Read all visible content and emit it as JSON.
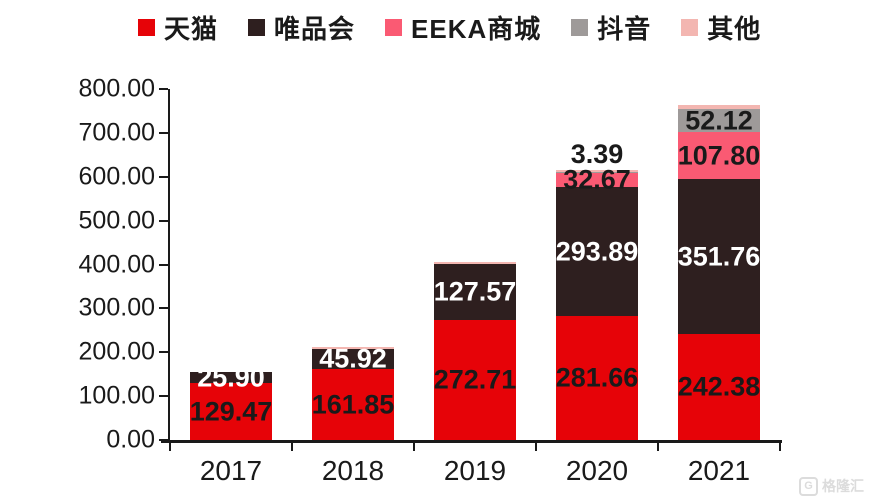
{
  "chart_data": {
    "type": "stacked-bar",
    "title": "",
    "categories": [
      "2017",
      "2018",
      "2019",
      "2020",
      "2021"
    ],
    "series": [
      {
        "name": "天猫",
        "color": "#e60308",
        "label_color": "#1a1a1a",
        "values": [
          129.47,
          161.85,
          272.71,
          281.66,
          242.38
        ],
        "labels": [
          "129.47",
          "161.85",
          "272.71",
          "281.66",
          "242.38"
        ]
      },
      {
        "name": "唯品会",
        "color": "#2e1f1f",
        "label_color": "#ffffff",
        "values": [
          25.9,
          45.92,
          127.57,
          293.89,
          351.76
        ],
        "labels": [
          "25.90",
          "45.92",
          "127.57",
          "293.89",
          "351.76"
        ]
      },
      {
        "name": "EEKA商城",
        "color": "#fa5a73",
        "label_color": "#1a1a1a",
        "values": [
          0,
          0,
          0,
          32.67,
          107.8
        ],
        "labels": [
          "",
          "",
          "",
          "32.67",
          "107.80"
        ]
      },
      {
        "name": "抖音",
        "color": "#9e9a99",
        "label_color": "#1a1a1a",
        "values": [
          0,
          0,
          0,
          3.39,
          52.12
        ],
        "labels": [
          "",
          "",
          "",
          "3.39",
          "52.12"
        ]
      },
      {
        "name": "其他",
        "color": "#f3b6b1",
        "label_color": "#1a1a1a",
        "values": [
          0,
          4,
          5,
          3,
          10
        ],
        "labels": [
          "",
          "",
          "",
          "",
          ""
        ]
      }
    ],
    "ylim": [
      0,
      800
    ],
    "ytick_labels": [
      "800.00",
      "700.00",
      "600.00",
      "500.00",
      "400.00",
      "300.00",
      "200.00",
      "100.00",
      "0.00"
    ],
    "legend_position": "top",
    "grid": false
  },
  "watermark": {
    "logo": "G",
    "text": "格隆汇"
  }
}
